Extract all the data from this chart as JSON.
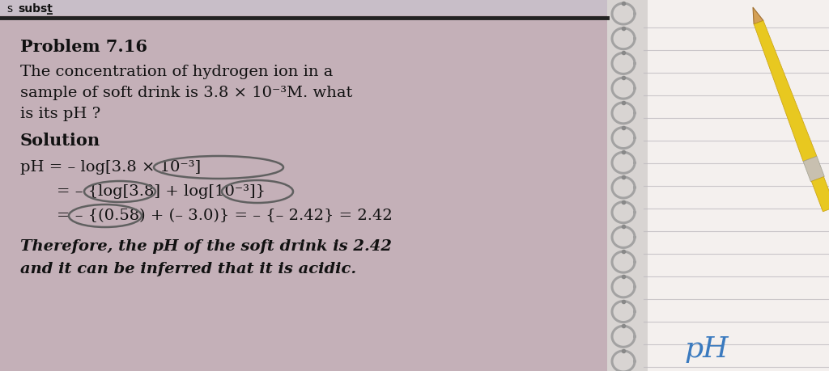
{
  "bg_color": "#c4b0b8",
  "text_color": "#111111",
  "title": "Problem 7.16",
  "problem_line1": "The concentration of hydrogen ion in a",
  "problem_line2": "sample of soft drink is 3.8 × 10⁻³M. what",
  "problem_line3": "is its pH ?",
  "solution_label": "Solution",
  "eq1": "pH = – log[3.8 × 10⁻³]",
  "eq2": "= – {log[3.8] + log[10⁻³]}",
  "eq3": "= – {(0.58) + (– 3.0)} = – {– 2.42} = 2.42",
  "conclusion1": "Therefore, the pH of the soft drink is 2.42",
  "conclusion2": "and it can be inferred that it is acidic.",
  "header_text": "s    subst",
  "notebook_bg": "#e8e4e0",
  "notebook_line_color": "#c0bcc0",
  "spiral_color": "#b0b0b0",
  "pencil_yellow": "#e8c820",
  "pencil_metal": "#c8c8c8",
  "ph_text_color": "#3a7abf",
  "divider_color": "#222222"
}
